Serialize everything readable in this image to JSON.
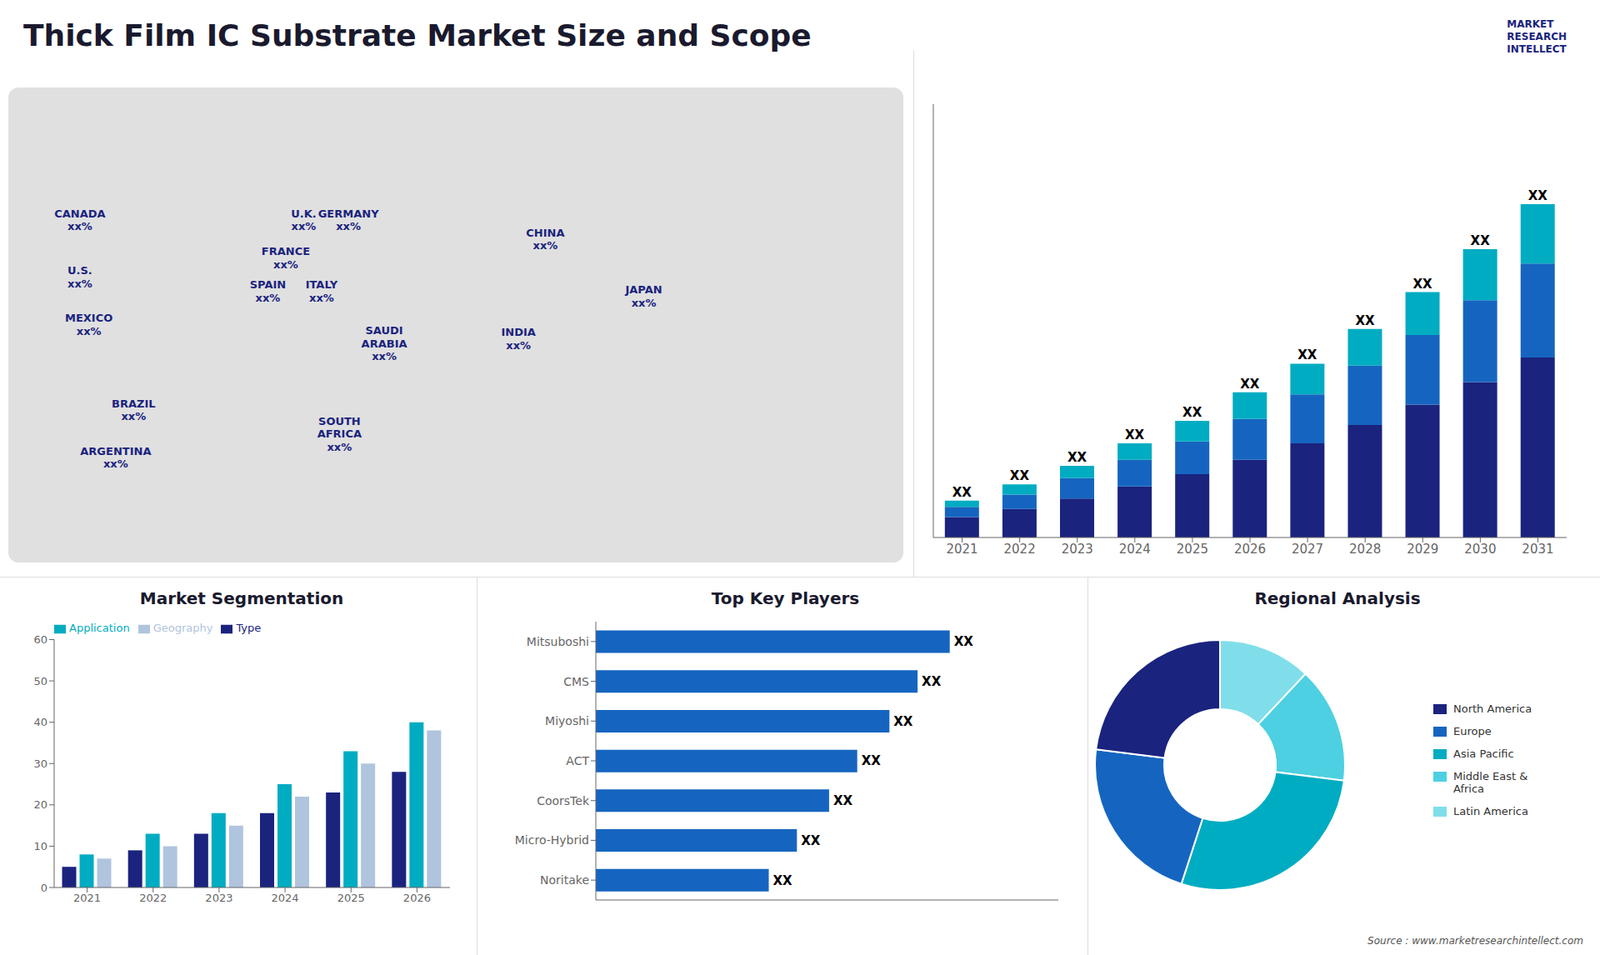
{
  "title": "Thick Film IC Substrate Market Size and Scope",
  "annotations": [
    "MARKET\nRESEARCH\nINTELLECT",
    "Source : www.marketresearchintellect.com"
  ],
  "chart_data": [
    {
      "type": "map",
      "annotations": [
        "CANADA\nxx%",
        "U.S.\nxx%",
        "MEXICO\nxx%",
        "BRAZIL\nxx%",
        "ARGENTINA\nxx%",
        "U.K.\nxx%",
        "FRANCE\nxx%",
        "SPAIN\nxx%",
        "GERMANY\nxx%",
        "ITALY\nxx%",
        "SAUDI\nARABIA\nxx%",
        "SOUTH\nAFRICA\nxx%",
        "CHINA\nxx%",
        "JAPAN\nxx%",
        "INDIA\nxx%"
      ]
    },
    {
      "type": "bar",
      "stacked": true,
      "categories": [
        "2021",
        "2022",
        "2023",
        "2024",
        "2025",
        "2026",
        "2027",
        "2028",
        "2029",
        "2030",
        "2031"
      ],
      "series": [
        {
          "color": "#1a237e",
          "values": [
            1.0,
            1.4,
            1.9,
            2.5,
            3.1,
            3.8,
            4.6,
            5.5,
            6.5,
            7.6,
            8.8
          ]
        },
        {
          "color": "#1565c0",
          "values": [
            0.5,
            0.7,
            1.0,
            1.3,
            1.6,
            2.0,
            2.4,
            2.9,
            3.4,
            4.0,
            4.6
          ]
        },
        {
          "color": "#00acc1",
          "values": [
            0.3,
            0.5,
            0.6,
            0.8,
            1.0,
            1.3,
            1.5,
            1.8,
            2.1,
            2.5,
            2.9
          ]
        }
      ],
      "ylim": [
        0,
        21.19
      ],
      "tick_labels": "x",
      "grid": false,
      "annotations": [
        "XX",
        "XX",
        "XX",
        "XX",
        "XX",
        "XX",
        "XX",
        "XX",
        "XX",
        "XX",
        "XX"
      ]
    },
    {
      "type": "bar",
      "title": "Market Segmentation",
      "categories": [
        "2021",
        "2022",
        "2023",
        "2024",
        "2025",
        "2026"
      ],
      "series": [
        {
          "name": "Type",
          "color": "#1a237e",
          "values": [
            5,
            9,
            13,
            18,
            23,
            28
          ]
        },
        {
          "name": "Application",
          "color": "#00acc1",
          "values": [
            8,
            13,
            18,
            25,
            33,
            40
          ]
        },
        {
          "name": "Geography",
          "color": "#b0c4de",
          "values": [
            7,
            10,
            15,
            22,
            30,
            38
          ]
        }
      ],
      "ylim": [
        0,
        60
      ],
      "yticks": [
        0,
        10,
        20,
        30,
        40,
        50,
        60
      ],
      "legend": "upper left",
      "grid": false
    },
    {
      "type": "bar",
      "orientation": "horizontal",
      "title": "Top Key Players",
      "categories": [
        "Mitsuboshi",
        "CMS",
        "Miyoshi",
        "ACT",
        "CoorsTek",
        "Micro-Hybrid",
        "Noritake"
      ],
      "values": [
        0.88,
        0.8,
        0.73,
        0.65,
        0.58,
        0.5,
        0.43
      ],
      "color": "#1565c0",
      "xlim": [
        0,
        1.15
      ],
      "tick_labels": "y",
      "grid": false,
      "annotations": [
        "XX",
        "XX",
        "XX",
        "XX",
        "XX",
        "XX",
        "XX"
      ]
    },
    {
      "type": "pie",
      "title": "Regional Analysis",
      "categories": [
        "Latin America",
        "Middle East &\nAfrica",
        "Asia Pacific",
        "Europe",
        "North America"
      ],
      "values": [
        0.12,
        0.15,
        0.28,
        0.22,
        0.23
      ],
      "colors": [
        "#80deea",
        "#4dd0e1",
        "#00acc1",
        "#1565c0",
        "#1a237e"
      ],
      "legend": "right"
    }
  ]
}
